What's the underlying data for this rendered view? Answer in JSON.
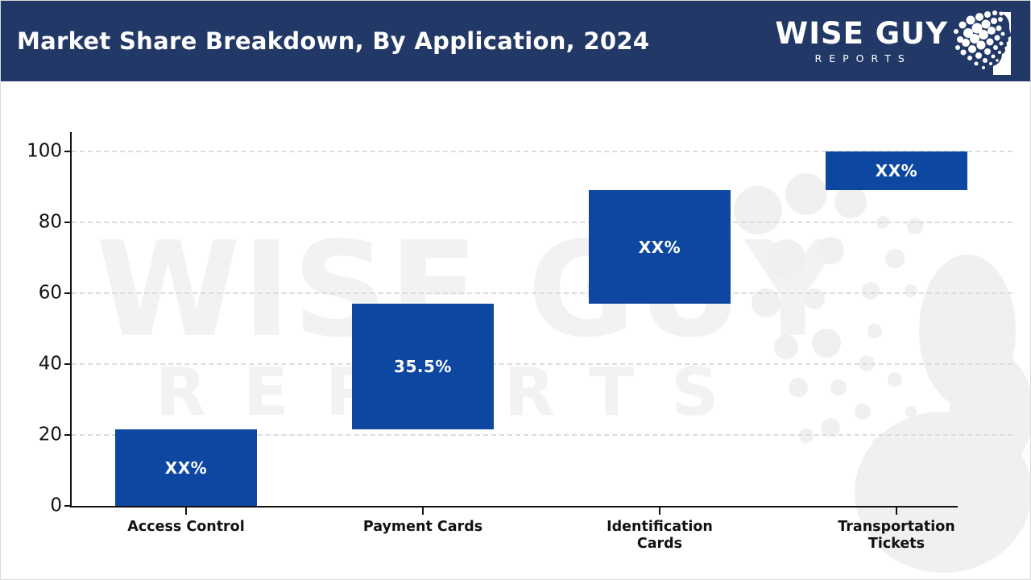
{
  "header": {
    "title": "Market Share Breakdown, By Application, 2024",
    "background_color": "#223866",
    "logo": {
      "line1": "WISE GUY",
      "line2": "REPORTS"
    }
  },
  "watermark": {
    "line1": "WISE GUY",
    "line2": "REPORTS"
  },
  "chart_data": {
    "type": "bar",
    "subtype": "waterfall-floating-segments",
    "title": "Market Share Breakdown, By Application, 2024",
    "xlabel": "",
    "ylabel": "",
    "categories": [
      "Access Control",
      "Payment Cards",
      "Identification\nCards",
      "Transportation\nTickets"
    ],
    "series": [
      {
        "name": "Market share (%)",
        "segments": [
          {
            "category": "Access Control",
            "start": 0,
            "end": 21.5,
            "value": 21.5,
            "label": "XX%"
          },
          {
            "category": "Payment Cards",
            "start": 21.5,
            "end": 57,
            "value": 35.5,
            "label": "35.5%"
          },
          {
            "category": "Identification Cards",
            "start": 57,
            "end": 89,
            "value": 32,
            "label": "XX%"
          },
          {
            "category": "Transportation Tickets",
            "start": 89,
            "end": 100,
            "value": 11,
            "label": "XX%"
          }
        ]
      }
    ],
    "ylim": [
      0,
      105
    ],
    "yticks": [
      0,
      20,
      40,
      60,
      80,
      100
    ],
    "grid": "horizontal dashed",
    "legend": "none",
    "bar_color": "#0d47a1",
    "bar_label_color": "#ffffff",
    "axis_color": "#111111",
    "gridline_color": "#dcdcdc"
  }
}
